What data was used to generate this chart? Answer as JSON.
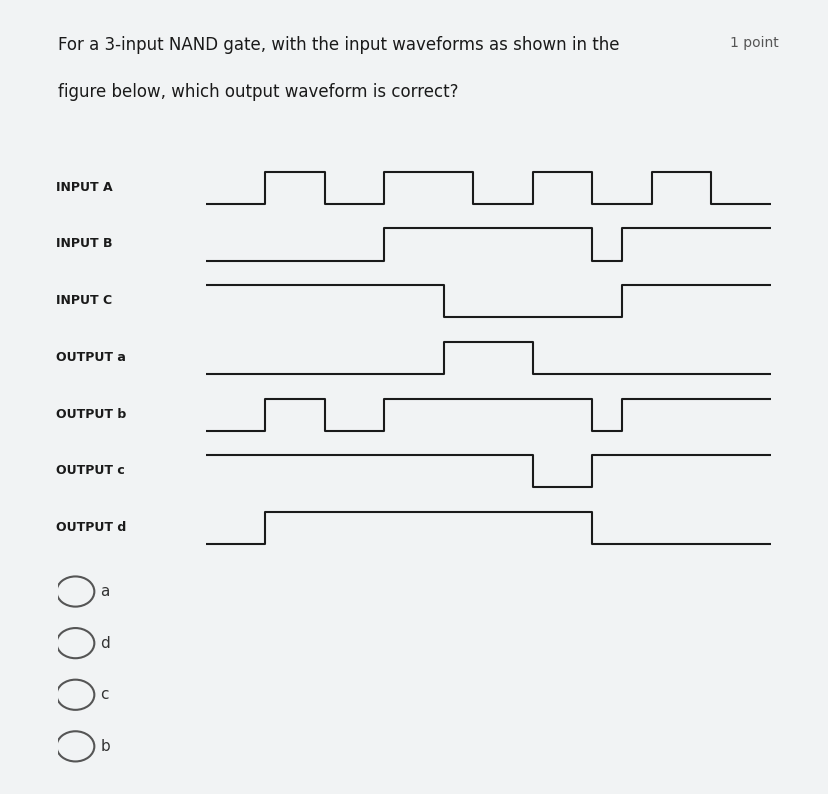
{
  "title_line1": "For a 3-input NAND gate, with the input waveforms as shown in the",
  "title_line2": "figure below, which output waveform is correct?",
  "title_points": "1 point",
  "bg_color": "#f1f3f4",
  "box_bg": "#ffffff",
  "labels": [
    "INPUT A",
    "INPUT B",
    "INPUT C",
    "OUTPUT a",
    "OUTPUT b",
    "OUTPUT c",
    "OUTPUT d"
  ],
  "waveforms": {
    "INPUT A": [
      0,
      0,
      1,
      1,
      0,
      0,
      1,
      1,
      1,
      0,
      0,
      1,
      1,
      0,
      0,
      1,
      1,
      0,
      0,
      0
    ],
    "INPUT B": [
      0,
      0,
      0,
      0,
      0,
      0,
      1,
      1,
      1,
      1,
      1,
      1,
      1,
      0,
      1,
      1,
      1,
      1,
      1,
      1
    ],
    "INPUT C": [
      1,
      1,
      1,
      1,
      1,
      1,
      1,
      1,
      0,
      0,
      0,
      0,
      0,
      0,
      1,
      1,
      1,
      1,
      1,
      1
    ],
    "OUTPUT a": [
      0,
      0,
      0,
      0,
      0,
      0,
      0,
      0,
      1,
      1,
      1,
      0,
      0,
      0,
      0,
      0,
      0,
      0,
      0,
      0
    ],
    "OUTPUT b": [
      0,
      0,
      1,
      1,
      0,
      0,
      1,
      1,
      1,
      1,
      1,
      1,
      1,
      0,
      1,
      1,
      1,
      1,
      1,
      1
    ],
    "OUTPUT c": [
      1,
      1,
      1,
      1,
      1,
      1,
      1,
      1,
      1,
      1,
      1,
      0,
      0,
      1,
      1,
      1,
      1,
      1,
      1,
      1
    ],
    "OUTPUT d": [
      0,
      0,
      1,
      1,
      1,
      1,
      1,
      1,
      1,
      1,
      1,
      1,
      1,
      0,
      0,
      0,
      0,
      0,
      0,
      0
    ]
  },
  "time_steps": 10,
  "choices": [
    "a",
    "d",
    "c",
    "b"
  ],
  "waveform_color": "#1a1a1a",
  "choice_text_color": "#333333",
  "label_fontsize": 9,
  "title_fontsize": 12
}
